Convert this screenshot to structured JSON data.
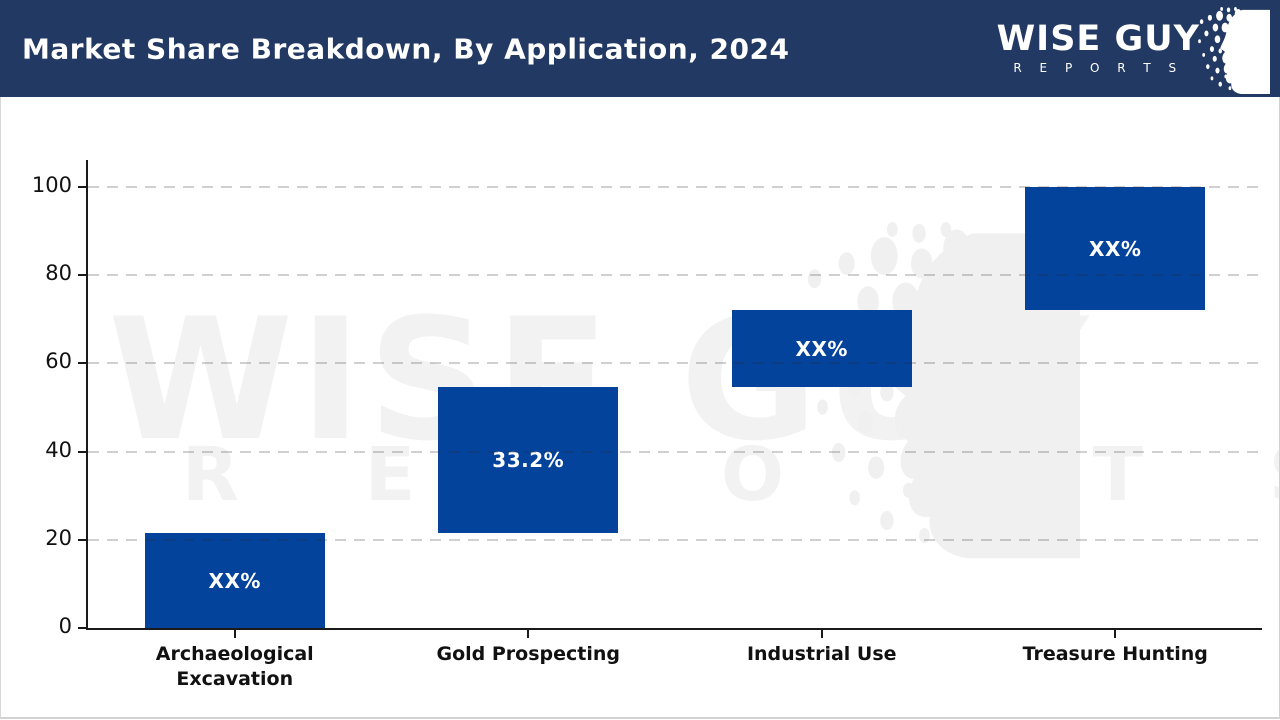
{
  "header": {
    "title": "Market Share Breakdown, By Application, 2024",
    "brand": {
      "name": "WISE GUY",
      "sub": "R E P O R T S"
    },
    "background_color": "#223963"
  },
  "watermark": {
    "line1": "WISE GUY",
    "line2": "R E P O R T S"
  },
  "chart_data": {
    "type": "bar",
    "subtype": "waterfall",
    "title": "Market Share Breakdown, By Application, 2024",
    "categories": [
      "Archaeological Excavation",
      "Gold Prospecting",
      "Industrial Use",
      "Treasure Hunting"
    ],
    "bars": [
      {
        "category": "Archaeological Excavation",
        "start": 0,
        "end": 21.5,
        "height": 21.5,
        "label": "XX%"
      },
      {
        "category": "Gold Prospecting",
        "start": 21.5,
        "end": 54.7,
        "height": 33.2,
        "label": "33.2%"
      },
      {
        "category": "Industrial Use",
        "start": 54.7,
        "end": 72.0,
        "height": 17.3,
        "label": "XX%"
      },
      {
        "category": "Treasure Hunting",
        "start": 72.0,
        "end": 100.0,
        "height": 28.0,
        "label": "XX%"
      }
    ],
    "xlabel": "",
    "ylabel": "",
    "ylim": [
      0,
      100
    ],
    "yticks": [
      0,
      20,
      40,
      60,
      80,
      100
    ],
    "grid": "dashed-horizontal-over-bars",
    "legend": null,
    "bar_color": "#04439c",
    "bar_label_color": "#ffffff",
    "axis_color": "#1a1a1a"
  }
}
